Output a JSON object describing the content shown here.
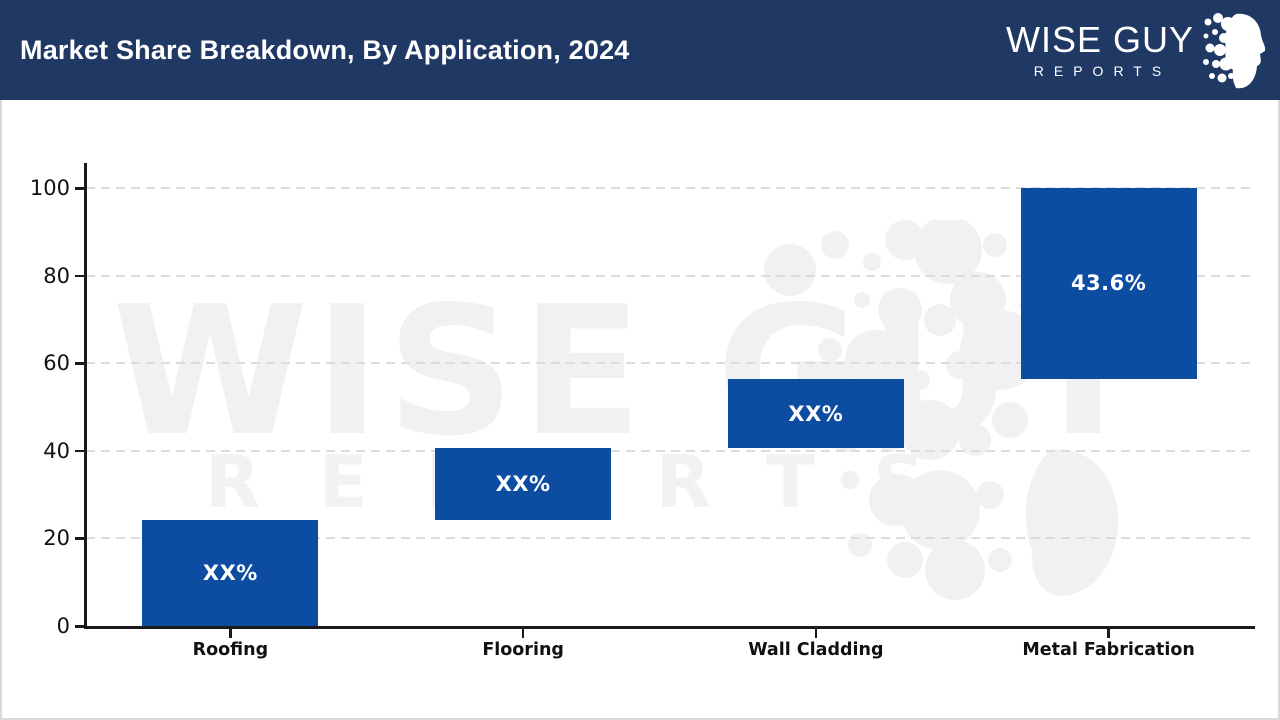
{
  "header": {
    "title": "Market Share Breakdown, By Application, 2024",
    "brand": {
      "line1": "WISE GUY",
      "line2": "REPORTS"
    }
  },
  "watermark": {
    "line1": "WISE GUY",
    "line2": "REPORTS"
  },
  "chart_data": {
    "type": "bar",
    "subtype": "waterfall-floating-bars",
    "title": "Market Share Breakdown, By Application, 2024",
    "xlabel": "",
    "ylabel": "",
    "legend": "none",
    "grid": "dashed-horizontal",
    "categories": [
      "Roofing",
      "Flooring",
      "Wall Cladding",
      "Metal Fabrication"
    ],
    "segments": [
      {
        "category": "Roofing",
        "start": 0,
        "end": 24.1,
        "value": 24.1,
        "label": "XX%"
      },
      {
        "category": "Flooring",
        "start": 24.1,
        "end": 40.6,
        "value": 16.5,
        "label": "XX%"
      },
      {
        "category": "Wall Cladding",
        "start": 40.6,
        "end": 56.4,
        "value": 15.8,
        "label": "XX%"
      },
      {
        "category": "Metal Fabrication",
        "start": 56.4,
        "end": 100,
        "value": 43.6,
        "label": "43.6%"
      }
    ],
    "yticks": [
      0,
      20,
      40,
      60,
      80,
      100
    ],
    "ylim": [
      0,
      105.7
    ],
    "colors": {
      "bar": "#0C4DA2",
      "bar_label": "#ffffff",
      "grid": "#dcdcdc",
      "axis": "#1a1a1a",
      "header_bg": "#1F3864",
      "header_text": "#ffffff",
      "watermark": "#f1f1f3",
      "frame_border": "#d9d9d9"
    }
  }
}
